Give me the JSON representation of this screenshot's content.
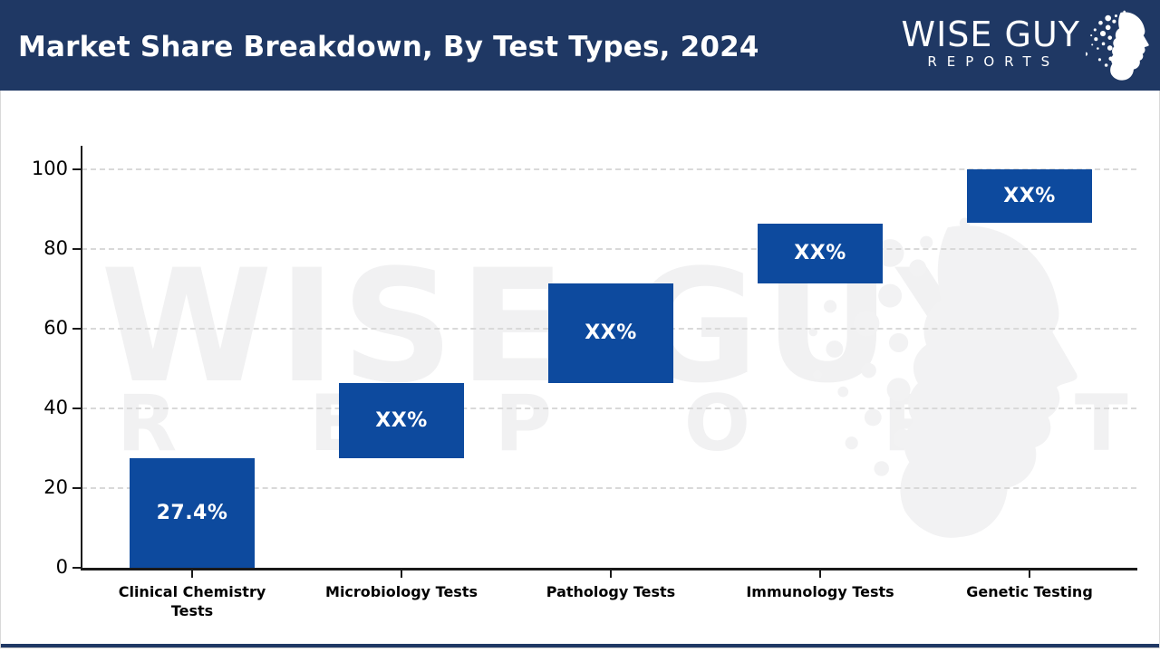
{
  "header": {
    "title": "Market Share Breakdown, By Test Types, 2024",
    "brand": {
      "line1": "WISE GUY",
      "line2": "REPORTS"
    }
  },
  "watermark": {
    "line1": "WISE GUY",
    "line2": "R E P O R T S"
  },
  "colors": {
    "header_navy": "#1f3864",
    "bar_blue": "#0d4a9e",
    "grid_gray": "#d9d9d9",
    "axis_black": "#1a1a1a",
    "value_label_white": "#ffffff",
    "watermark_gray": "#f1f1f2"
  },
  "chart_data": {
    "type": "bar",
    "subtype": "waterfall",
    "title": "Market Share Breakdown, By Test Types, 2024",
    "xlabel": "",
    "ylabel": "",
    "categories": [
      "Clinical Chemistry Tests",
      "Microbiology Tests",
      "Pathology Tests",
      "Immunology Tests",
      "Genetic Testing"
    ],
    "bars": [
      {
        "category": "Clinical Chemistry Tests",
        "start": 0,
        "end": 27.4,
        "label": "27.4%"
      },
      {
        "category": "Microbiology Tests",
        "start": 27.4,
        "end": 46.4,
        "label": "XX%"
      },
      {
        "category": "Pathology Tests",
        "start": 46.4,
        "end": 71.4,
        "label": "XX%"
      },
      {
        "category": "Immunology Tests",
        "start": 71.4,
        "end": 86.4,
        "label": "XX%"
      },
      {
        "category": "Genetic Testing",
        "start": 86.6,
        "end": 100,
        "label": "XX%"
      }
    ],
    "yticks": [
      0,
      20,
      40,
      60,
      80,
      100
    ],
    "ylim": [
      0,
      106
    ],
    "grid": "horizontal-dashed",
    "legend": "none"
  }
}
